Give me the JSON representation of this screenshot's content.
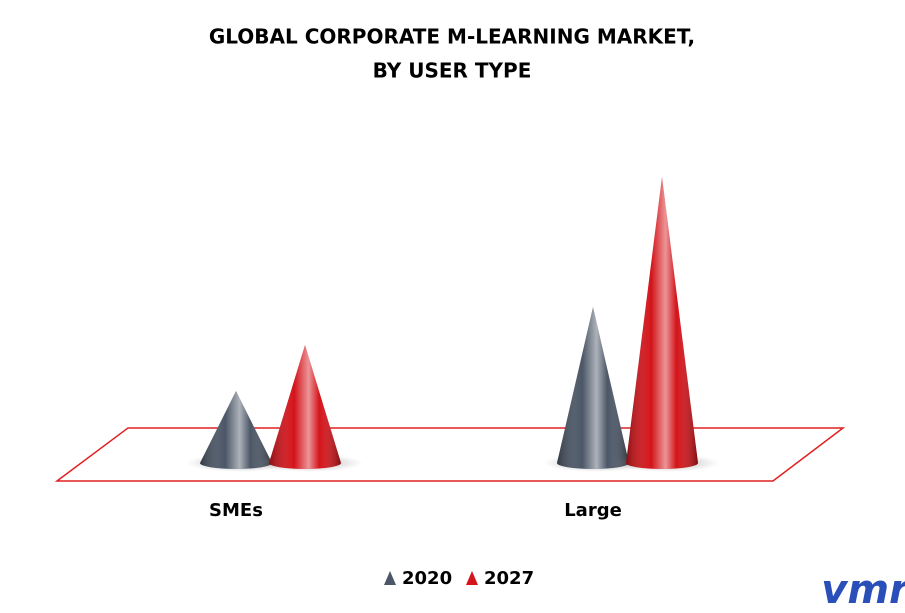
{
  "chart_data": {
    "type": "cone",
    "title": [
      "GLOBAL CORPORATE M-LEARNING MARKET,",
      "BY USER TYPE"
    ],
    "categories": [
      "SMEs",
      "Large"
    ],
    "series": [
      {
        "name": "2020",
        "color": "#4b5666",
        "values": [
          72,
          156
        ]
      },
      {
        "name": "2027",
        "color": "#d3141a",
        "values": [
          118,
          286
        ]
      }
    ],
    "ylim": [
      0,
      300
    ],
    "brand": "vmr"
  }
}
